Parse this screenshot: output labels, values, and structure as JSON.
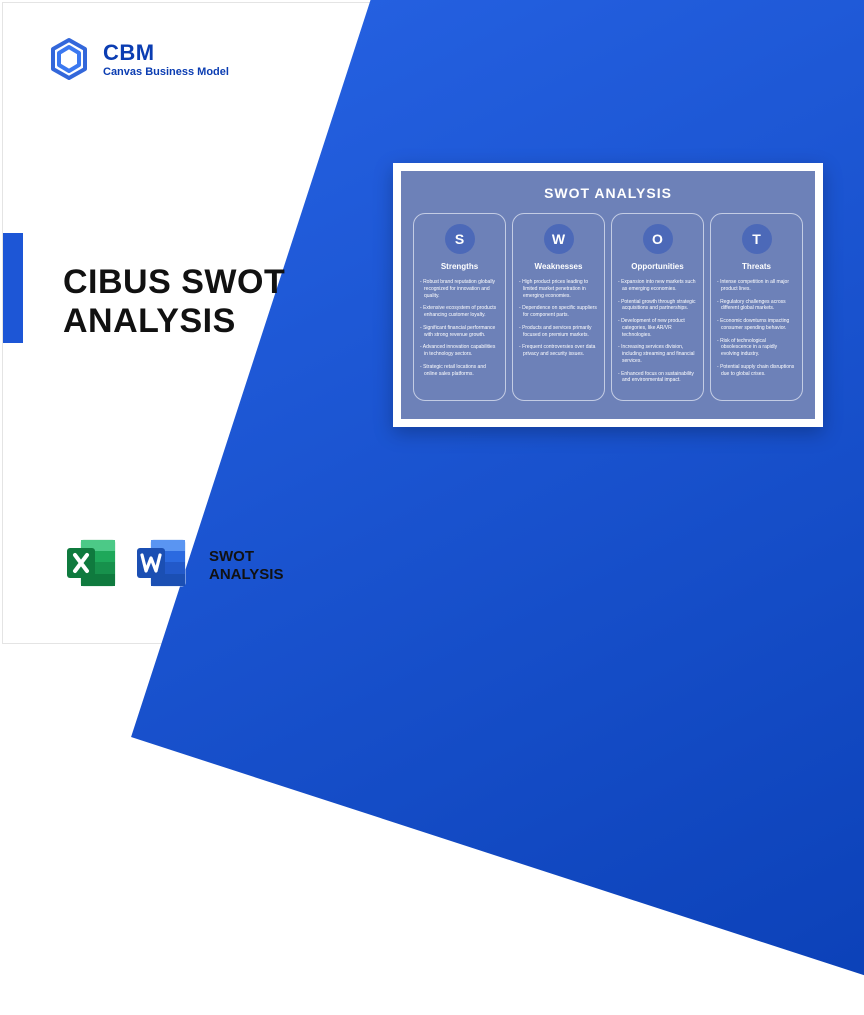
{
  "brand": {
    "acronym": "CBM",
    "subtitle": "Canvas Business Model",
    "color": "#0b3db2"
  },
  "title": {
    "line1": "CIBUS SWOT",
    "line2": "ANALYSIS"
  },
  "file_label": {
    "line1": "SWOT",
    "line2": "ANALYSIS"
  },
  "diagonal_gradient": {
    "from": "#2966e8",
    "to": "#0a3fb5"
  },
  "accent_color": "#1d56d6",
  "excel_colors": {
    "dark": "#0f7a3e",
    "mid": "#1ea85a",
    "light": "#4cc987"
  },
  "word_colors": {
    "dark": "#1b4fb3",
    "mid": "#2b6ae0",
    "light": "#5a95f2"
  },
  "swot": {
    "card_bg": "#6d81b8",
    "badge_bg": "#4c69b8",
    "border_color": "#c3cce4",
    "title": "SWOT ANALYSIS",
    "columns": [
      {
        "letter": "S",
        "heading": "Strengths",
        "items": [
          "Robust brand reputation globally recognized for innovation and quality.",
          "Extensive ecosystem of products enhancing customer loyalty.",
          "Significant financial performance with strong revenue growth.",
          "Advanced innovation capabilities in technology sectors.",
          "Strategic retail locations and online sales platforms."
        ]
      },
      {
        "letter": "W",
        "heading": "Weaknesses",
        "items": [
          "High product prices leading to limited market penetration in emerging economies.",
          "Dependence on specific suppliers for component parts.",
          "Products and services primarily focused on premium markets.",
          "Frequent controversies over data privacy and security issues."
        ]
      },
      {
        "letter": "O",
        "heading": "Opportunities",
        "items": [
          "Expansion into new markets such as emerging economies.",
          "Potential growth through strategic acquisitions and partnerships.",
          "Development of new product categories, like AR/VR technologies.",
          "Increasing services division, including streaming and financial services.",
          "Enhanced focus on sustainability and environmental impact."
        ]
      },
      {
        "letter": "T",
        "heading": "Threats",
        "items": [
          "Intense competition in all major product lines.",
          "Regulatory challenges across different global markets.",
          "Economic downturns impacting consumer spending behavior.",
          "Risk of technological obsolescence in a rapidly evolving industry.",
          "Potential supply chain disruptions due to global crises."
        ]
      }
    ]
  }
}
